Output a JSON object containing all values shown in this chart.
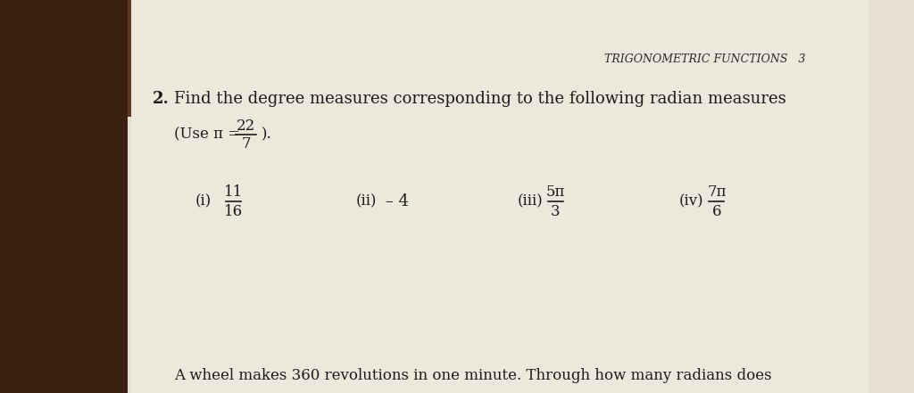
{
  "background_color": "#e8e0d0",
  "top_bg_color": "#5a3a2a",
  "header_text": "TRIGONOMETRIC FUNCTIONS",
  "header_page": "3",
  "question_number": "2.",
  "question_text": "Find the degree measures corresponding to the following radian measures",
  "use_pi_text": "(Use π = ",
  "pi_numerator": "22",
  "pi_denominator": "7",
  "pi_close": ").",
  "sub_items": [
    {
      "label": "(i)",
      "num": "11",
      "den": "16"
    },
    {
      "label": "(ii)",
      "expr": "– 4"
    },
    {
      "label": "(iii)",
      "num": "5π",
      "den": "3"
    },
    {
      "label": "(iv)",
      "num": "7π",
      "den": "6"
    }
  ],
  "bottom_text": "A wheel makes 360 revolutions in one minute. Through how many radians does",
  "text_color": "#1a1a1a",
  "header_color": "#2a2a2a"
}
